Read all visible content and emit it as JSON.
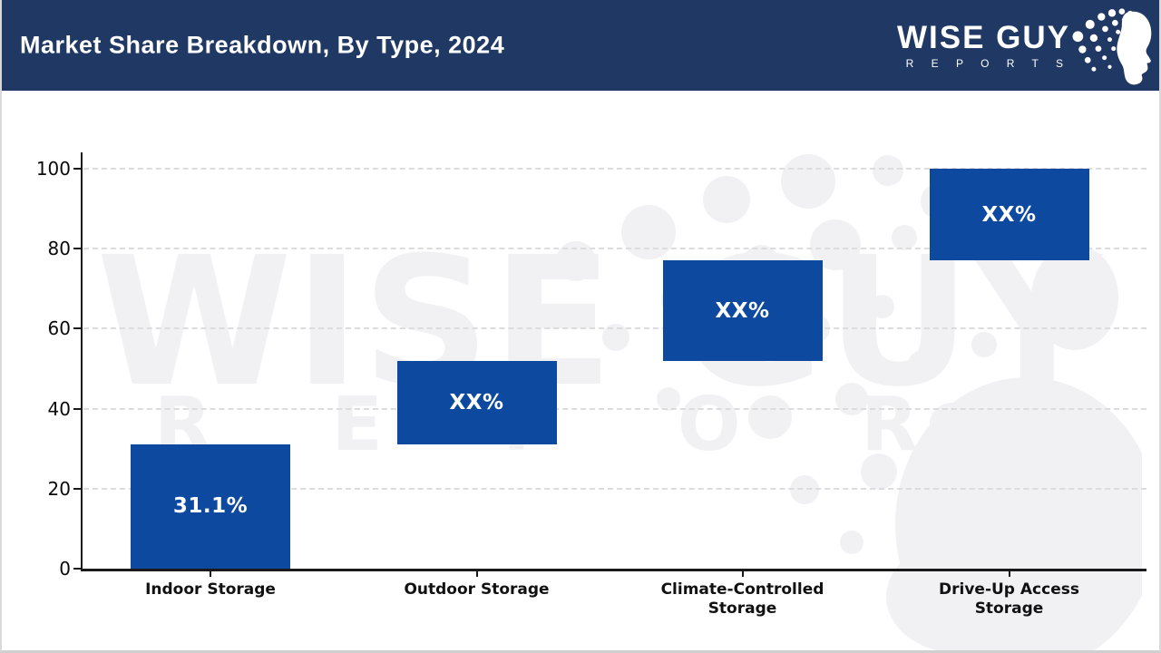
{
  "header": {
    "title": "Market Share Breakdown, By Type, 2024",
    "logo": {
      "wordmark": "WISE GUY",
      "subtext": "R E P O R T S"
    }
  },
  "watermark": {
    "wordmark": "WISE GUY",
    "subtext": "REPORTS"
  },
  "colors": {
    "header_bg": "#1F3864",
    "bar_blue": "#0D4A9F",
    "gridline_gray": "#DCDCDC",
    "watermark_gray": "#F1F1F4",
    "axis_black": "#1A1A1A"
  },
  "chart_data": {
    "type": "bar",
    "variant": "waterfall",
    "title": "Market Share Breakdown, By Type, 2024",
    "categories": [
      "Indoor Storage",
      "Outdoor Storage",
      "Climate-Controlled Storage",
      "Drive-Up Access Storage"
    ],
    "segments": [
      {
        "category": "Indoor Storage",
        "start": 0,
        "end": 31.1,
        "label": "31.1%"
      },
      {
        "category": "Outdoor Storage",
        "start": 31.1,
        "end": 52,
        "label": "XX%"
      },
      {
        "category": "Climate-Controlled Storage",
        "start": 52,
        "end": 77,
        "label": "XX%"
      },
      {
        "category": "Drive-Up Access Storage",
        "start": 77,
        "end": 100,
        "label": "XX%"
      }
    ],
    "ylabel": "",
    "xlabel": "",
    "ylim": [
      0,
      100
    ],
    "yticks": [
      0,
      20,
      40,
      60,
      80,
      100
    ],
    "grid": "horizontal-dashed",
    "legend": "none",
    "bar_color": "#0D4A9F"
  }
}
